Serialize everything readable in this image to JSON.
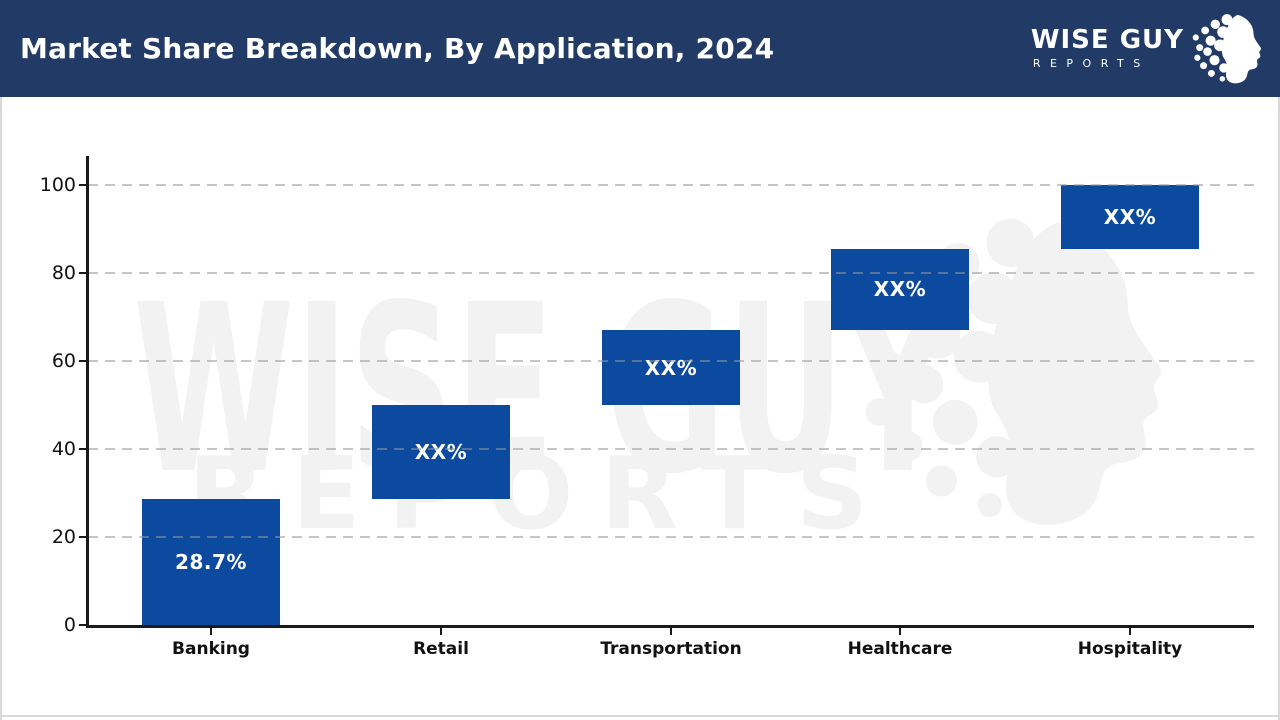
{
  "header": {
    "title": "Market Share Breakdown, By Application, 2024",
    "bg_color": "#213a66",
    "text_color": "#ffffff",
    "brand": {
      "name_top": "WISE GUY",
      "name_bottom": "REPORTS"
    }
  },
  "watermark": {
    "line1": "WISE GUY",
    "line2": "REPORTS",
    "color": "#f2f2f2"
  },
  "chart_data": {
    "type": "bar",
    "subtype": "waterfall",
    "title": "Market Share Breakdown, By Application, 2024",
    "categories": [
      "Banking",
      "Retail",
      "Transportation",
      "Healthcare",
      "Hospitality"
    ],
    "segments": [
      {
        "category": "Banking",
        "start": 0,
        "end": 28.7,
        "label": "28.7%"
      },
      {
        "category": "Retail",
        "start": 28.7,
        "end": 50.0,
        "label": "XX%"
      },
      {
        "category": "Transportation",
        "start": 50.0,
        "end": 67.0,
        "label": "XX%"
      },
      {
        "category": "Healthcare",
        "start": 67.0,
        "end": 85.5,
        "label": "XX%"
      },
      {
        "category": "Hospitality",
        "start": 85.5,
        "end": 100.0,
        "label": "XX%"
      }
    ],
    "xlabel": "",
    "ylabel": "",
    "ylim": [
      0,
      105
    ],
    "yticks": [
      0,
      20,
      40,
      60,
      80,
      100
    ],
    "grid": {
      "axis": "y",
      "style": "dashed",
      "drawn_over_bars": true
    },
    "legend": "none",
    "bar_color": "#0b4a9f",
    "bar_label_color": "#ffffff",
    "axis_color": "#1a1a1a"
  }
}
